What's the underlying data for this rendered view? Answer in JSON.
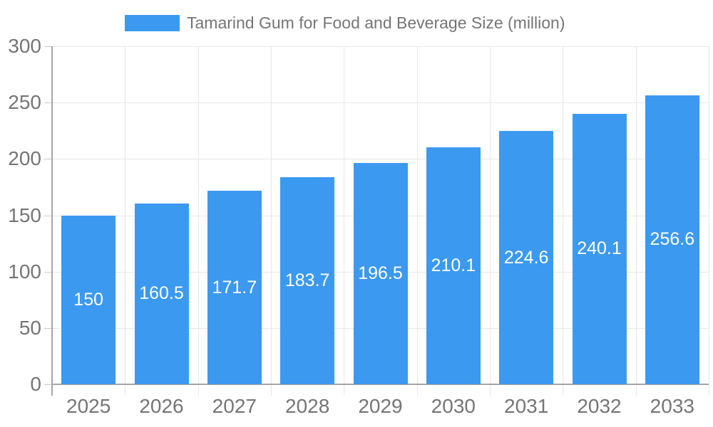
{
  "legend": {
    "swatch_color": "#3b99f0",
    "label": "Tamarind Gum for Food and Beverage Size (million)"
  },
  "chart_data": {
    "type": "bar",
    "title": "Tamarind Gum for Food and Beverage Size (million)",
    "categories": [
      "2025",
      "2026",
      "2027",
      "2028",
      "2029",
      "2030",
      "2031",
      "2032",
      "2033"
    ],
    "series": [
      {
        "name": "Tamarind Gum for Food and Beverage Size (million)",
        "values": [
          150,
          160.5,
          171.7,
          183.7,
          196.5,
          210.1,
          224.6,
          240.1,
          256.6
        ],
        "labels": [
          "150",
          "160.5",
          "171.7",
          "183.7",
          "196.5",
          "210.1",
          "224.6",
          "240.1",
          "256.6"
        ],
        "color": "#3b99f0"
      }
    ],
    "xlabel": "",
    "ylabel": "",
    "ylim": [
      0,
      300
    ],
    "yticks": [
      0,
      50,
      100,
      150,
      200,
      250,
      300
    ],
    "grid": true,
    "legend_position": "top",
    "value_label_position": "inside-center",
    "colors": {
      "bar": "#3b99f0",
      "bar_label_text": "#ffffff",
      "axis_text": "#757575",
      "legend_text": "#757575",
      "gridline": "#e6e6e6",
      "axis_line": "#a6a6a6",
      "tick": "#c9c9c9"
    }
  }
}
